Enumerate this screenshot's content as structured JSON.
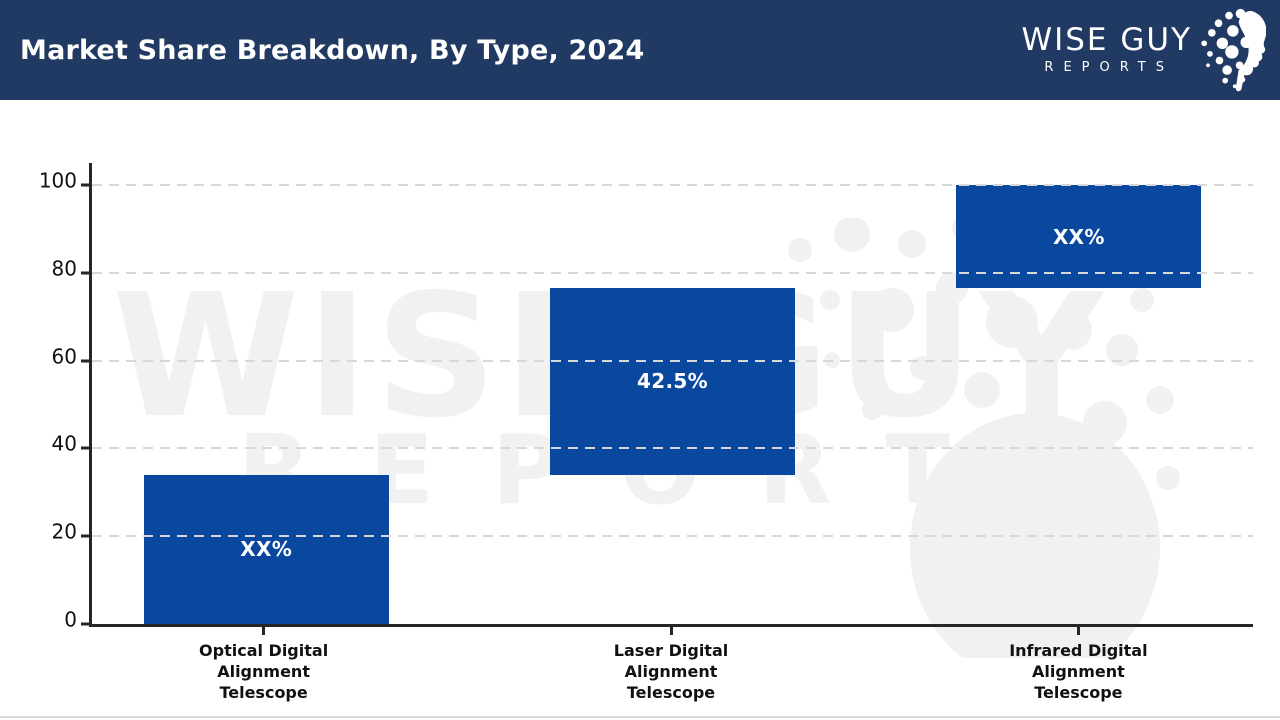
{
  "header": {
    "title": "Market Share Breakdown, By Type, 2024",
    "logo": {
      "primary": "WISE GUY",
      "secondary": "REPORTS"
    }
  },
  "watermark": {
    "primary": "WISE GUY",
    "secondary": "REPORTS"
  },
  "colors": {
    "header_bg": "#213a63",
    "bar": "#0a479f",
    "grid": "#d8d8d8",
    "axis": "#262626",
    "bar_label_text": "#ffffff",
    "tick_text": "#111111",
    "watermark": "#f1f1f4"
  },
  "chart_data": {
    "type": "bar",
    "subtype": "floating-segment (stacked waterfall of market share)",
    "title": "Market Share Breakdown, By Type, 2024",
    "xlabel": "",
    "ylabel": "",
    "ylim": [
      0,
      105
    ],
    "yticks": [
      0,
      20,
      40,
      60,
      80,
      100
    ],
    "grid": "horizontal dashed, drawn over bars",
    "legend": "none",
    "categories": [
      [
        "Optical Digital",
        "Alignment",
        "Telescope"
      ],
      [
        "Laser Digital",
        "Alignment",
        "Telescope"
      ],
      [
        "Infrared Digital",
        "Alignment",
        "Telescope"
      ]
    ],
    "bars": [
      {
        "category": "Optical Digital Alignment Telescope",
        "start": 0,
        "end": 34,
        "value_label": "XX%"
      },
      {
        "category": "Laser Digital Alignment Telescope",
        "start": 34,
        "end": 76.5,
        "value_label": "42.5%"
      },
      {
        "category": "Infrared Digital Alignment Telescope",
        "start": 76.5,
        "end": 100,
        "value_label": "XX%"
      }
    ]
  }
}
